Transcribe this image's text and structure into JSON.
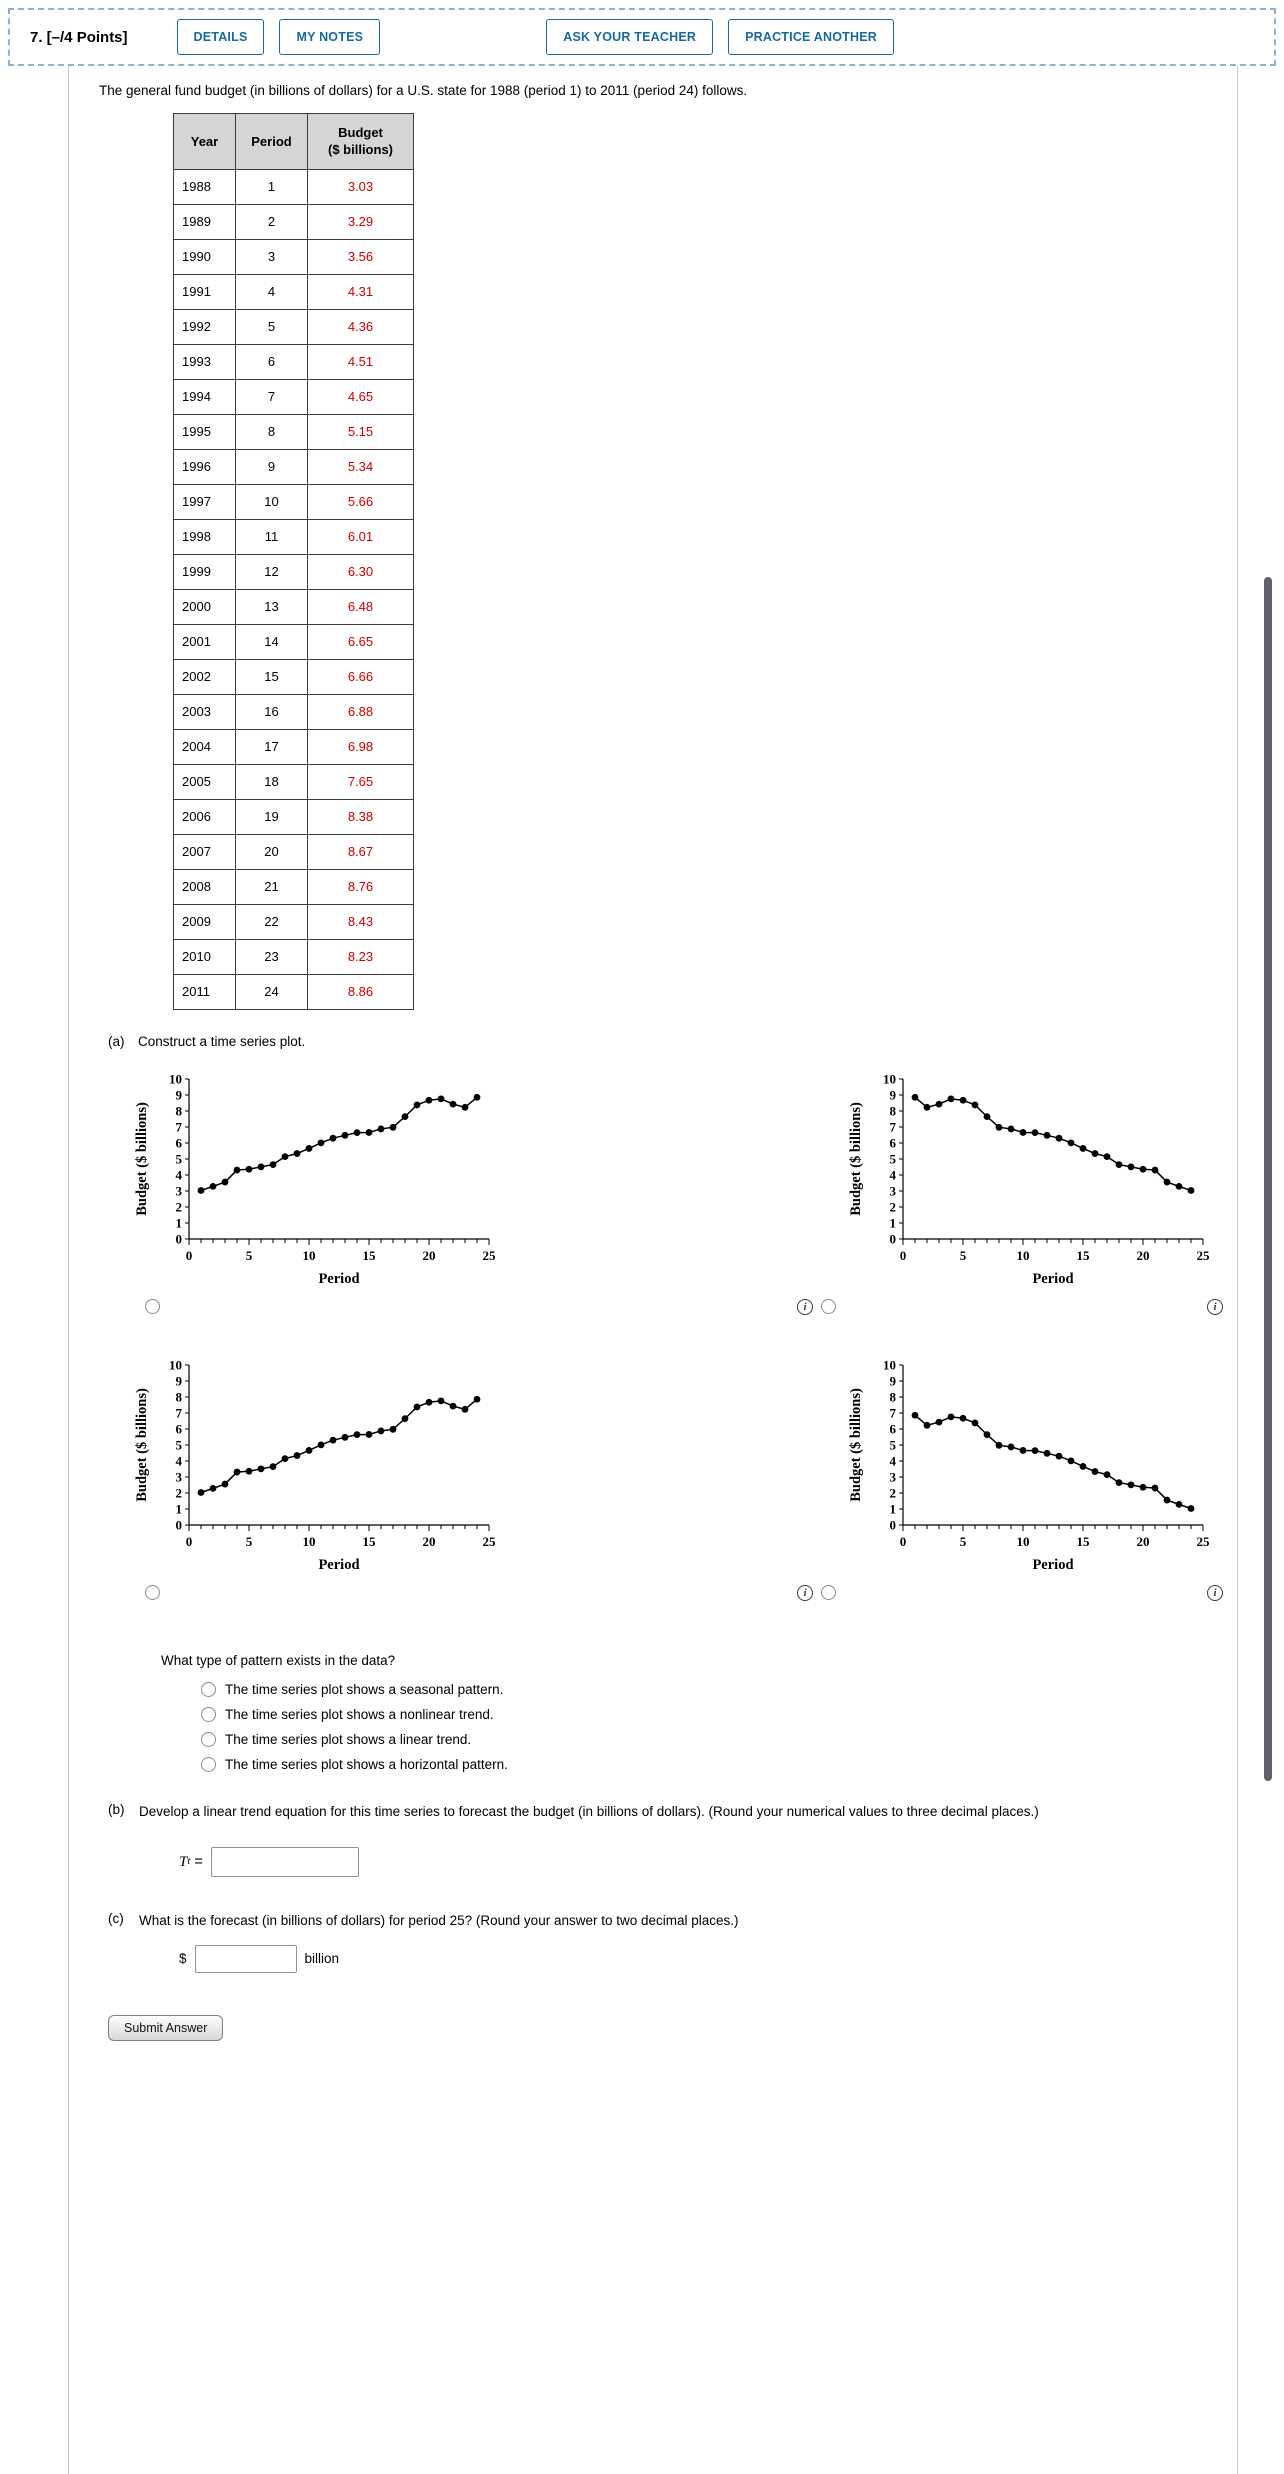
{
  "colors": {
    "accent_blue": "#17699e",
    "budget_value": "#cc0000"
  },
  "header": {
    "question_id": "7. [–/4 Points]",
    "details_label": "DETAILS",
    "my_notes_label": "MY NOTES",
    "ask_teacher_label": "ASK YOUR TEACHER",
    "practice_another_label": "PRACTICE ANOTHER"
  },
  "intro": "The general fund budget (in billions of dollars) for a U.S. state for 1988 (period 1) to 2011 (period 24) follows.",
  "table": {
    "headers": {
      "year": "Year",
      "period": "Period",
      "budget_line1": "Budget",
      "budget_line2": "($ billions)"
    },
    "rows": [
      {
        "year": "1988",
        "period": "1",
        "budget": "3.03"
      },
      {
        "year": "1989",
        "period": "2",
        "budget": "3.29"
      },
      {
        "year": "1990",
        "period": "3",
        "budget": "3.56"
      },
      {
        "year": "1991",
        "period": "4",
        "budget": "4.31"
      },
      {
        "year": "1992",
        "period": "5",
        "budget": "4.36"
      },
      {
        "year": "1993",
        "period": "6",
        "budget": "4.51"
      },
      {
        "year": "1994",
        "period": "7",
        "budget": "4.65"
      },
      {
        "year": "1995",
        "period": "8",
        "budget": "5.15"
      },
      {
        "year": "1996",
        "period": "9",
        "budget": "5.34"
      },
      {
        "year": "1997",
        "period": "10",
        "budget": "5.66"
      },
      {
        "year": "1998",
        "period": "11",
        "budget": "6.01"
      },
      {
        "year": "1999",
        "period": "12",
        "budget": "6.30"
      },
      {
        "year": "2000",
        "period": "13",
        "budget": "6.48"
      },
      {
        "year": "2001",
        "period": "14",
        "budget": "6.65"
      },
      {
        "year": "2002",
        "period": "15",
        "budget": "6.66"
      },
      {
        "year": "2003",
        "period": "16",
        "budget": "6.88"
      },
      {
        "year": "2004",
        "period": "17",
        "budget": "6.98"
      },
      {
        "year": "2005",
        "period": "18",
        "budget": "7.65"
      },
      {
        "year": "2006",
        "period": "19",
        "budget": "8.38"
      },
      {
        "year": "2007",
        "period": "20",
        "budget": "8.67"
      },
      {
        "year": "2008",
        "period": "21",
        "budget": "8.76"
      },
      {
        "year": "2009",
        "period": "22",
        "budget": "8.43"
      },
      {
        "year": "2010",
        "period": "23",
        "budget": "8.23"
      },
      {
        "year": "2011",
        "period": "24",
        "budget": "8.86"
      }
    ]
  },
  "part_a": {
    "label": "(a)",
    "prompt": "Construct a time series plot."
  },
  "chart_data": [
    {
      "type": "line",
      "position": "top-left",
      "xlabel": "Period",
      "ylabel": "Budget ($ billions)",
      "xlim": [
        0,
        25
      ],
      "ylim": [
        0,
        10
      ],
      "x_major_ticks": [
        0,
        5,
        10,
        15,
        20,
        25
      ],
      "y_tick_step": 1,
      "x": [
        1,
        2,
        3,
        4,
        5,
        6,
        7,
        8,
        9,
        10,
        11,
        12,
        13,
        14,
        15,
        16,
        17,
        18,
        19,
        20,
        21,
        22,
        23,
        24
      ],
      "y": [
        3.03,
        3.29,
        3.56,
        4.31,
        4.36,
        4.51,
        4.65,
        5.15,
        5.34,
        5.66,
        6.01,
        6.3,
        6.48,
        6.65,
        6.66,
        6.88,
        6.98,
        7.65,
        8.38,
        8.67,
        8.76,
        8.43,
        8.23,
        8.86
      ]
    },
    {
      "type": "line",
      "position": "top-right",
      "xlabel": "Period",
      "ylabel": "Budget ($ billions)",
      "xlim": [
        0,
        25
      ],
      "ylim": [
        0,
        10
      ],
      "x_major_ticks": [
        0,
        5,
        10,
        15,
        20,
        25
      ],
      "y_tick_step": 1,
      "x": [
        1,
        2,
        3,
        4,
        5,
        6,
        7,
        8,
        9,
        10,
        11,
        12,
        13,
        14,
        15,
        16,
        17,
        18,
        19,
        20,
        21,
        22,
        23,
        24
      ],
      "y": [
        8.86,
        8.23,
        8.43,
        8.76,
        8.67,
        8.38,
        7.65,
        6.98,
        6.88,
        6.66,
        6.65,
        6.48,
        6.3,
        6.01,
        5.66,
        5.34,
        5.15,
        4.65,
        4.51,
        4.36,
        4.31,
        3.56,
        3.29,
        3.03
      ]
    },
    {
      "type": "line",
      "position": "bottom-left",
      "xlabel": "Period",
      "ylabel": "Budget ($ billions)",
      "xlim": [
        0,
        25
      ],
      "ylim": [
        0,
        10
      ],
      "x_major_ticks": [
        0,
        5,
        10,
        15,
        20,
        25
      ],
      "y_tick_step": 1,
      "x": [
        1,
        2,
        3,
        4,
        5,
        6,
        7,
        8,
        9,
        10,
        11,
        12,
        13,
        14,
        15,
        16,
        17,
        18,
        19,
        20,
        21,
        22,
        23,
        24
      ],
      "y": [
        2.03,
        2.29,
        2.56,
        3.31,
        3.36,
        3.51,
        3.65,
        4.15,
        4.34,
        4.66,
        5.01,
        5.3,
        5.48,
        5.65,
        5.66,
        5.88,
        5.98,
        6.65,
        7.38,
        7.67,
        7.76,
        7.43,
        7.23,
        7.86
      ]
    },
    {
      "type": "line",
      "position": "bottom-right",
      "xlabel": "Period",
      "ylabel": "Budget ($ billions)",
      "xlim": [
        0,
        25
      ],
      "ylim": [
        0,
        10
      ],
      "x_major_ticks": [
        0,
        5,
        10,
        15,
        20,
        25
      ],
      "y_tick_step": 1,
      "x": [
        1,
        2,
        3,
        4,
        5,
        6,
        7,
        8,
        9,
        10,
        11,
        12,
        13,
        14,
        15,
        16,
        17,
        18,
        19,
        20,
        21,
        22,
        23,
        24
      ],
      "y": [
        6.86,
        6.23,
        6.43,
        6.76,
        6.67,
        6.38,
        5.65,
        4.98,
        4.88,
        4.66,
        4.65,
        4.48,
        4.3,
        4.01,
        3.66,
        3.34,
        3.15,
        2.65,
        2.51,
        2.36,
        2.31,
        1.56,
        1.29,
        1.03
      ]
    }
  ],
  "pattern_question": {
    "prompt": "What type of pattern exists in the data?",
    "options": [
      "The time series plot shows a seasonal pattern.",
      "The time series plot shows a nonlinear trend.",
      "The time series plot shows a linear trend.",
      "The time series plot shows a horizontal pattern."
    ]
  },
  "part_b": {
    "label": "(b)",
    "prompt": "Develop a linear trend equation for this time series to forecast the budget (in billions of dollars). (Round your numerical values to three decimal places.)",
    "variable": "T",
    "subscript": "t",
    "equals_sign": "=",
    "input_value": ""
  },
  "part_c": {
    "label": "(c)",
    "prompt": "What is the forecast (in billions of dollars) for period 25? (Round your answer to two decimal places.)",
    "currency_prefix": "$",
    "unit_suffix": "billion",
    "input_value": ""
  },
  "submit_label": "Submit Answer"
}
